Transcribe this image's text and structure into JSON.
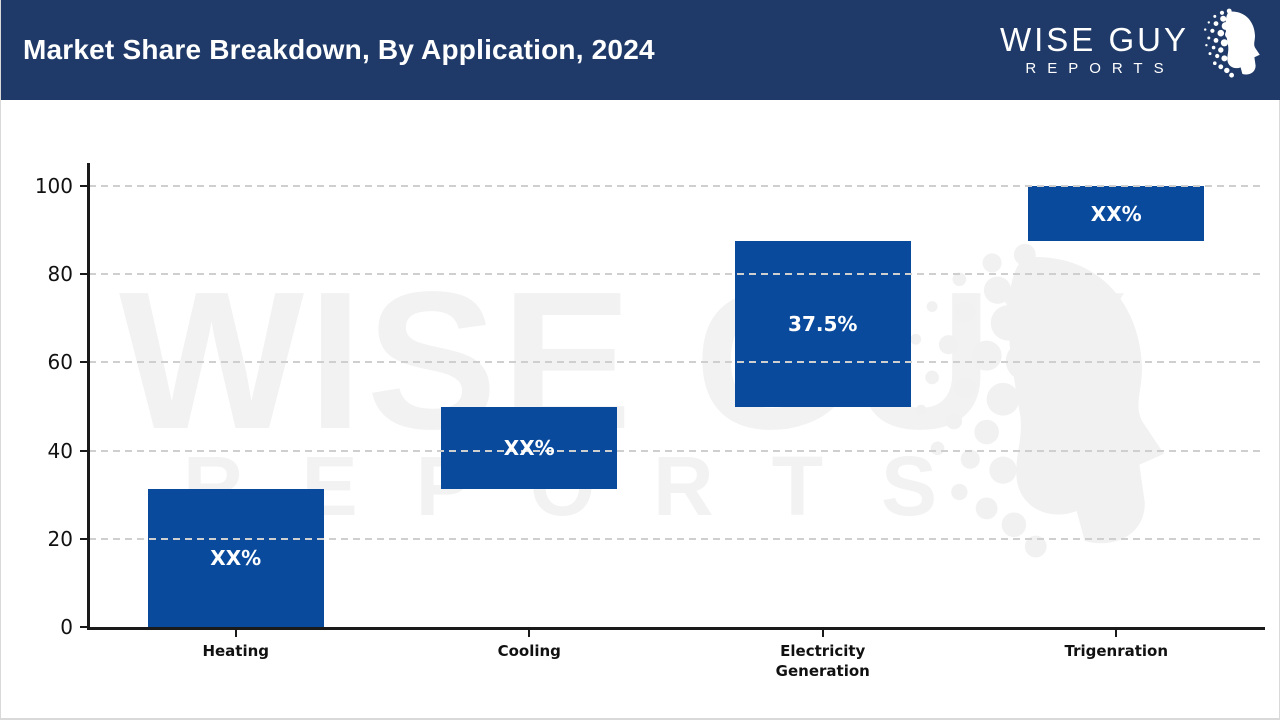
{
  "header": {
    "title": "Market Share Breakdown, By Application, 2024",
    "logo": {
      "line1": "WISE GUY",
      "line2": "REPORTS"
    }
  },
  "watermark": {
    "line1": "WISE GUY",
    "line2": "REPORTS"
  },
  "colors": {
    "header_bg": "#1F3A68",
    "bar": "#0A4A9D",
    "bar_label": "#FFFFFF",
    "gridline": "#CFCFCF",
    "axis": "#1A1A1A",
    "watermark": "#F2F2F2"
  },
  "chart_data": {
    "type": "bar",
    "variant": "waterfall",
    "title": "Market Share Breakdown, By Application, 2024",
    "xlabel": "",
    "ylabel": "",
    "ylim": [
      0,
      100
    ],
    "yticks": [
      0,
      20,
      40,
      60,
      80,
      100
    ],
    "grid": "horizontal dashed, drawn above bars",
    "legend": "none",
    "categories": [
      "Heating",
      "Cooling",
      "Electricity Generation",
      "Trigenration"
    ],
    "category_display": [
      "Heating",
      "Cooling",
      "Electricity\nGeneration",
      "Trigenration"
    ],
    "segments": [
      {
        "category": "Heating",
        "start": 0,
        "end": 31.25,
        "value": 31.25,
        "label": "XX%"
      },
      {
        "category": "Cooling",
        "start": 31.25,
        "end": 50,
        "value": 18.75,
        "label": "XX%"
      },
      {
        "category": "Electricity Generation",
        "start": 50,
        "end": 87.5,
        "value": 37.5,
        "label": "37.5%"
      },
      {
        "category": "Trigenration",
        "start": 87.5,
        "end": 100,
        "value": 12.5,
        "label": "XX%"
      }
    ]
  }
}
